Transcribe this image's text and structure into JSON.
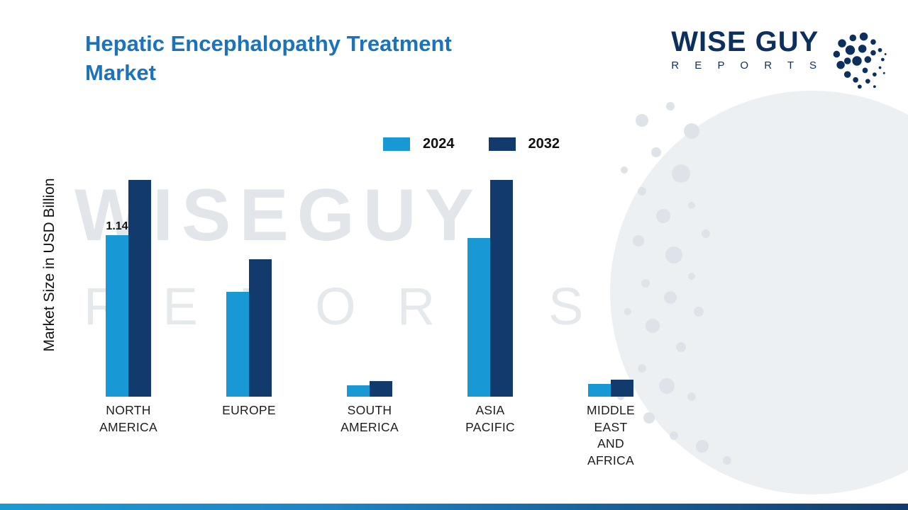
{
  "header": {
    "title": "Hepatic Encephalopathy Treatment Market",
    "logo": {
      "line1": "WISE GUY",
      "line2": "R E P O R T S"
    }
  },
  "watermark": {
    "line1": "WISEGUY",
    "line2": "REPORTS"
  },
  "colors": {
    "title_blue": "#1d72b8",
    "series_2024": "#1899d6",
    "series_2032": "#133a6d",
    "logo_navy": "#0d2f5e",
    "strip_gradient_start": "#1b9ad2",
    "strip_gradient_end": "#123a6b"
  },
  "chart_data": {
    "type": "bar",
    "title": "Hepatic Encephalopathy Treatment Market",
    "xlabel": "",
    "ylabel": "Market Size in USD Billion",
    "categories": [
      "NORTH\nAMERICA",
      "EUROPE",
      "SOUTH\nAMERICA",
      "ASIA\nPACIFIC",
      "MIDDLE\nEAST\nAND\nAFRICA"
    ],
    "series": [
      {
        "name": "2024",
        "color": "#1899d6",
        "values": [
          1.14,
          0.74,
          0.08,
          1.12,
          0.09
        ]
      },
      {
        "name": "2032",
        "color": "#133a6d",
        "values": [
          1.53,
          0.97,
          0.11,
          1.53,
          0.12
        ]
      }
    ],
    "annotations": [
      {
        "series_index": 0,
        "category_index": 0,
        "text": "1.14"
      }
    ],
    "ylim": [
      0,
      1.7
    ],
    "grid": false,
    "legend_position": "top-center"
  }
}
